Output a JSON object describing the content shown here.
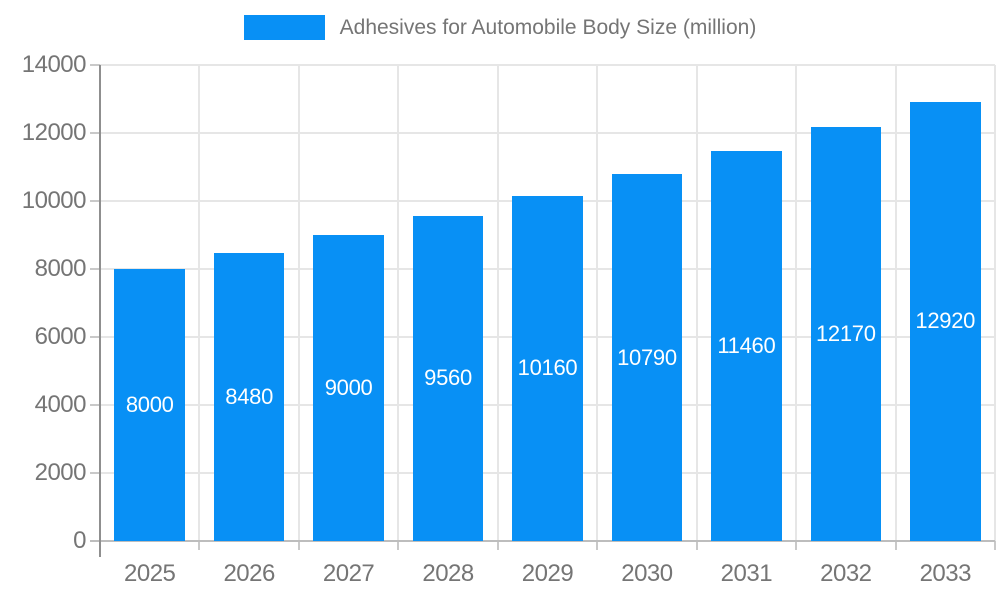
{
  "chart_data": {
    "type": "bar",
    "title": "Adhesives for Automobile Body Size (million)",
    "legend": {
      "label": "Adhesives for Automobile Body Size (million)",
      "position": "top-center"
    },
    "categories": [
      "2025",
      "2026",
      "2027",
      "2028",
      "2029",
      "2030",
      "2031",
      "2032",
      "2033"
    ],
    "series": [
      {
        "name": "Adhesives for Automobile Body Size (million)",
        "values": [
          8000,
          8480,
          9000,
          9560,
          10160,
          10790,
          11460,
          12170,
          12920
        ]
      }
    ],
    "bar_labels": [
      "8000",
      "8480",
      "9000",
      "9560",
      "10160",
      "10790",
      "11460",
      "12170",
      "12920"
    ],
    "xlabel": "",
    "ylabel": "",
    "ylim": [
      0,
      14000
    ],
    "yticks": [
      0,
      2000,
      4000,
      6000,
      8000,
      10000,
      12000,
      14000
    ],
    "grid": true,
    "colors": {
      "bar": "#0890f5",
      "bar_label": "#ffffff",
      "axis_text": "#757575",
      "gridline": "#e6e6e6",
      "axis_line": "#8f8f8f",
      "baseline": "#bdbdbd",
      "tick": "#c9c9c9",
      "background": "#ffffff"
    }
  }
}
